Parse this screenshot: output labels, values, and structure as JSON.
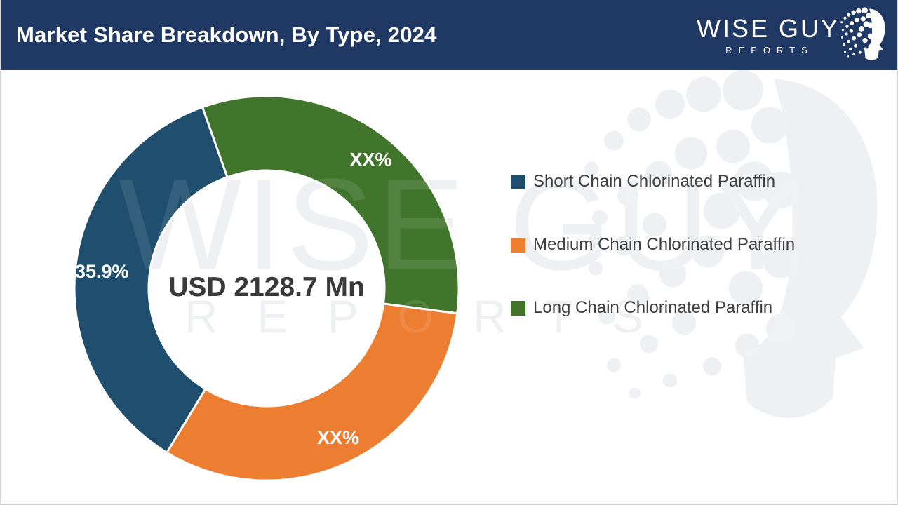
{
  "header": {
    "title": "Market Share Breakdown, By Type, 2024",
    "logo": {
      "line1": "WISE GUY",
      "line2": "REPORTS"
    }
  },
  "watermark": {
    "line1": "WISE GUY",
    "line2": "REPORTS"
  },
  "chart_data": {
    "type": "pie",
    "subtype": "donut",
    "title": "Market Share Breakdown, By Type, 2024",
    "center_label": "USD 2128.7 Mn",
    "start_angle_deg": -19.5,
    "slices": [
      {
        "label": "Long Chain Chlorinated Paraffin",
        "display_label": "XX%",
        "percent_est": 32.5,
        "color": "#41752C"
      },
      {
        "label": "Medium Chain Chlorinated Paraffin",
        "display_label": "XX%",
        "percent_est": 31.6,
        "color": "#ED7D31"
      },
      {
        "label": "Short Chain Chlorinated Paraffin",
        "display_label": "35.9%",
        "percent_est": 35.9,
        "color": "#1F4E6E"
      }
    ],
    "legend": [
      {
        "label": "Short Chain Chlorinated Paraffin",
        "color": "#1F4E6E"
      },
      {
        "label": "Medium Chain Chlorinated Paraffin",
        "color": "#ED7D31"
      },
      {
        "label": "Long Chain Chlorinated Paraffin",
        "color": "#41752C"
      }
    ],
    "legend_position": "right"
  },
  "colors": {
    "header_bg": "#203864",
    "center_text": "#3A3A3A",
    "legend_text": "#404040",
    "slice_label_text": "#FFFFFF",
    "watermark": "#EDEFF2"
  }
}
